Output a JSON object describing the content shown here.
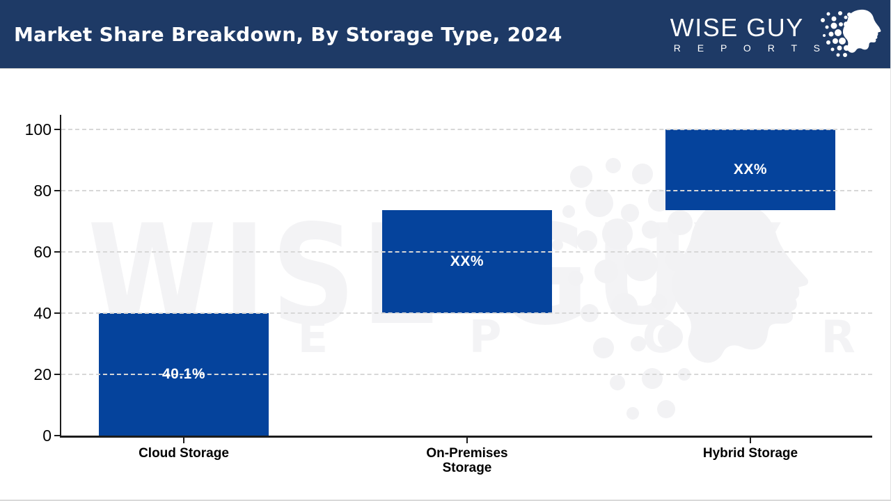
{
  "header": {
    "title": "Market Share Breakdown, By Storage Type, 2024",
    "logo": {
      "wordmark": "WISE GUY",
      "subtext": "R E P O R T S"
    }
  },
  "watermark": {
    "wordmark": "WISE GUY",
    "subtext": "R E P O R T S"
  },
  "colors": {
    "header_bg": "#1e3a66",
    "bar_blue": "#05439c",
    "axis": "#1c1c1c",
    "gridline": "#d7d7d7",
    "watermark": "#f3f3f5",
    "bar_label": "#ffffff"
  },
  "chart_data": {
    "type": "bar",
    "subtype": "waterfall-stacked-to-100",
    "title": "Market Share Breakdown, By Storage Type, 2024",
    "categories": [
      "Cloud Storage",
      "On-Premises\nStorage",
      "Hybrid Storage"
    ],
    "series": [
      {
        "name": "Market share (%)",
        "segments": [
          {
            "category": "Cloud Storage",
            "start": 0,
            "end": 40.1,
            "label": "40.1%"
          },
          {
            "category": "On-Premises Storage",
            "start": 40.1,
            "end": 73.6,
            "label": "XX%"
          },
          {
            "category": "Hybrid Storage",
            "start": 73.6,
            "end": 100,
            "label": "XX%"
          }
        ]
      }
    ],
    "xlabel": "",
    "ylabel": "",
    "ylim": [
      0,
      100
    ],
    "yticks": [
      0,
      20,
      40,
      60,
      80,
      100
    ],
    "grid": "horizontal-dashed",
    "legend": "none",
    "bar_color": "#05439c",
    "label_color": "#ffffff"
  }
}
